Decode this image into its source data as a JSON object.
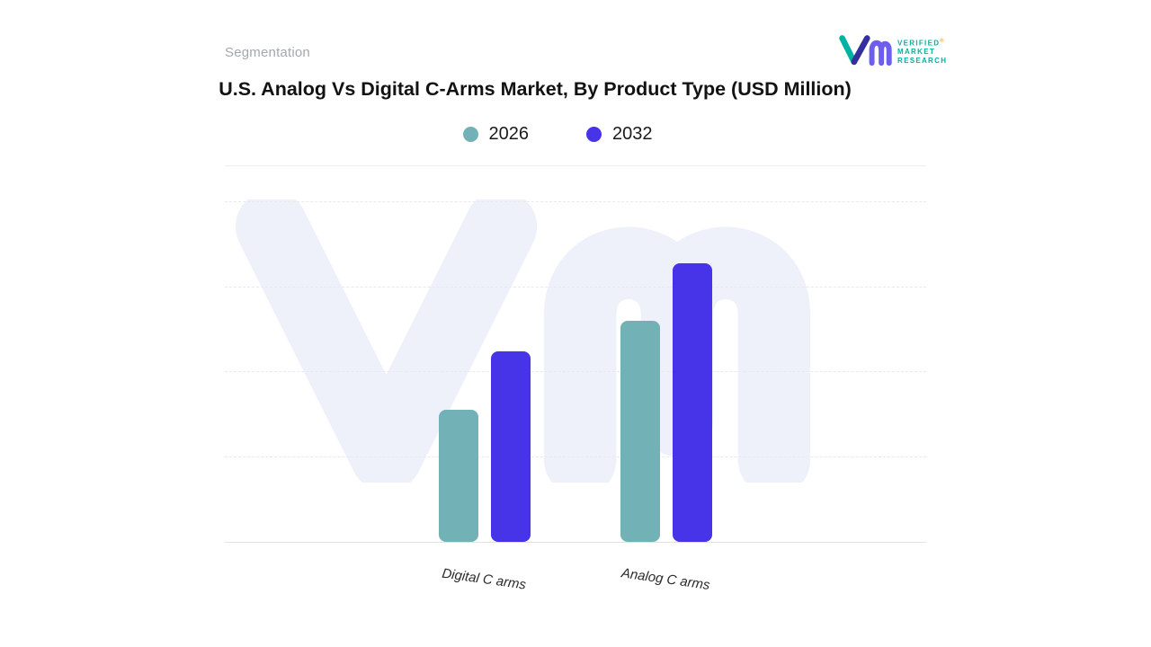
{
  "header": {
    "segmentation_label": "Segmentation",
    "title": "U.S. Analog Vs Digital C-Arms Market, By Product Type (USD Million)"
  },
  "logo": {
    "line1": "VERIFIED",
    "line2": "MARKET",
    "line3": "RESEARCH",
    "registered_mark": "®",
    "teal": "#00b2a2",
    "indigo": "#33309e",
    "purple": "#6d5ef0"
  },
  "chart_data": {
    "type": "bar",
    "title": "U.S. Analog Vs Digital C-Arms Market, By Product Type (USD Million)",
    "categories": [
      "Digital C arms",
      "Analog C arms"
    ],
    "series": [
      {
        "name": "2026",
        "color": "#72b2b6",
        "values": [
          39,
          65
        ]
      },
      {
        "name": "2032",
        "color": "#4733e8",
        "values": [
          56,
          82
        ]
      }
    ],
    "xlabel": "",
    "ylabel": "",
    "ylim": [
      0,
      100
    ],
    "values_note": "relative scale estimated from bar heights; no numeric axis shown",
    "grid": "horizontal dashed",
    "legend_position": "top center",
    "watermark_color": "#eef0fa"
  }
}
